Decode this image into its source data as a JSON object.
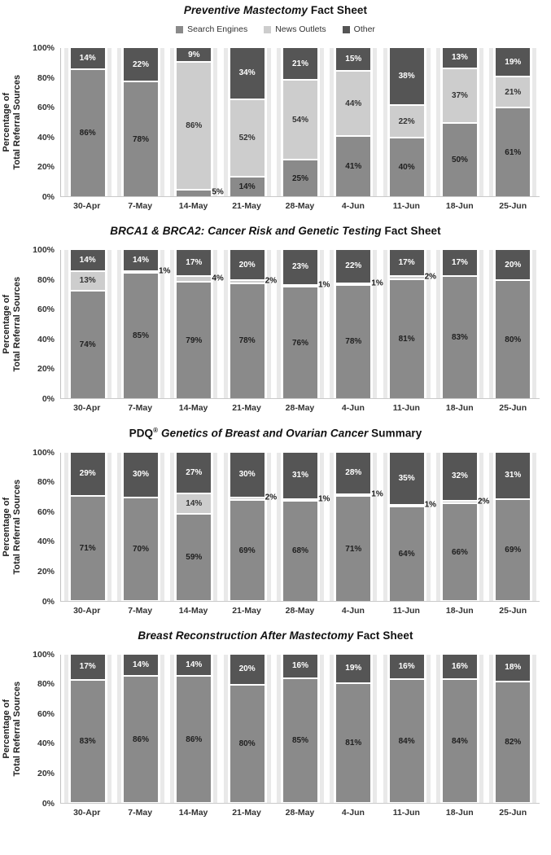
{
  "page": {
    "background": "#ffffff"
  },
  "colors": {
    "search": "#8a8a8a",
    "news": "#cdcdcd",
    "other": "#555555",
    "halo": "#e9e9e9",
    "axis_line": "#c0c0c0",
    "label_on_dark": "#ffffff",
    "label_on_medium": "#1f1f1f",
    "label_on_light": "#333333",
    "outside_label": "#1a1a1a"
  },
  "legend": {
    "items": [
      {
        "label": "Search Engines",
        "color_key": "search"
      },
      {
        "label": "News Outlets",
        "color_key": "news"
      },
      {
        "label": "Other",
        "color_key": "other"
      }
    ]
  },
  "y_axis": {
    "label_lines": [
      "Percentage of",
      "Total Referral Sources"
    ],
    "ticks": [
      "100%",
      "80%",
      "60%",
      "40%",
      "20%",
      "0%"
    ],
    "range": [
      0,
      100
    ]
  },
  "chart_data": [
    {
      "type": "bar",
      "subtype": "stacked-100",
      "title_parts": [
        {
          "text": "Preventive Mastectomy",
          "italic": true
        },
        {
          "text": " Fact Sheet",
          "italic": false
        }
      ],
      "show_legend": true,
      "categories": [
        "30-Apr",
        "7-May",
        "14-May",
        "21-May",
        "28-May",
        "4-Jun",
        "11-Jun",
        "18-Jun",
        "25-Jun"
      ],
      "series": [
        {
          "name": "Search Engines",
          "color_key": "search",
          "values": [
            86,
            78,
            5,
            14,
            25,
            41,
            40,
            50,
            61
          ]
        },
        {
          "name": "News Outlets",
          "color_key": "news",
          "values": [
            0,
            0,
            86,
            52,
            54,
            44,
            22,
            37,
            21
          ]
        },
        {
          "name": "Other",
          "color_key": "other",
          "values": [
            14,
            22,
            9,
            34,
            21,
            15,
            38,
            13,
            19
          ]
        }
      ],
      "ylabel": "Percentage of Total Referral Sources",
      "ylim": [
        0,
        100
      ],
      "grid": false,
      "legend_position": "top"
    },
    {
      "type": "bar",
      "subtype": "stacked-100",
      "title_parts": [
        {
          "text": "BRCA1 & BRCA2: Cancer Risk and Genetic Testing",
          "italic": true
        },
        {
          "text": " Fact Sheet",
          "italic": false
        }
      ],
      "show_legend": false,
      "categories": [
        "30-Apr",
        "7-May",
        "14-May",
        "21-May",
        "28-May",
        "4-Jun",
        "11-Jun",
        "18-Jun",
        "25-Jun"
      ],
      "series": [
        {
          "name": "Search Engines",
          "color_key": "search",
          "values": [
            74,
            85,
            79,
            78,
            76,
            78,
            81,
            83,
            80
          ]
        },
        {
          "name": "News Outlets",
          "color_key": "news",
          "values": [
            13,
            1,
            4,
            2,
            1,
            1,
            2,
            0,
            0
          ]
        },
        {
          "name": "Other",
          "color_key": "other",
          "values": [
            14,
            14,
            17,
            20,
            23,
            22,
            17,
            17,
            20
          ]
        }
      ],
      "ylabel": "Percentage of Total Referral Sources",
      "ylim": [
        0,
        100
      ],
      "grid": false
    },
    {
      "type": "bar",
      "subtype": "stacked-100",
      "title_parts": [
        {
          "text": "PDQ",
          "italic": false
        },
        {
          "text": "®",
          "italic": false,
          "sup": true
        },
        {
          "text": " Genetics of Breast and Ovarian Cancer",
          "italic": true
        },
        {
          "text": " Summary",
          "italic": false
        }
      ],
      "show_legend": false,
      "categories": [
        "30-Apr",
        "7-May",
        "14-May",
        "21-May",
        "28-May",
        "4-Jun",
        "11-Jun",
        "18-Jun",
        "25-Jun"
      ],
      "series": [
        {
          "name": "Search Engines",
          "color_key": "search",
          "values": [
            71,
            70,
            59,
            69,
            68,
            71,
            64,
            66,
            69
          ]
        },
        {
          "name": "News Outlets",
          "color_key": "news",
          "values": [
            0,
            0,
            14,
            2,
            1,
            1,
            1,
            2,
            0
          ]
        },
        {
          "name": "Other",
          "color_key": "other",
          "values": [
            29,
            30,
            27,
            30,
            31,
            28,
            35,
            32,
            31
          ]
        }
      ],
      "ylabel": "Percentage of Total Referral Sources",
      "ylim": [
        0,
        100
      ],
      "grid": false
    },
    {
      "type": "bar",
      "subtype": "stacked-100",
      "title_parts": [
        {
          "text": "Breast Reconstruction After Mastectomy",
          "italic": true
        },
        {
          "text": " Fact Sheet",
          "italic": false
        }
      ],
      "show_legend": false,
      "categories": [
        "30-Apr",
        "7-May",
        "14-May",
        "21-May",
        "28-May",
        "4-Jun",
        "11-Jun",
        "18-Jun",
        "25-Jun"
      ],
      "series": [
        {
          "name": "Search Engines",
          "color_key": "search",
          "values": [
            83,
            86,
            86,
            80,
            85,
            81,
            84,
            84,
            82
          ]
        },
        {
          "name": "News Outlets",
          "color_key": "news",
          "values": [
            0,
            0,
            0,
            0,
            0,
            0,
            0,
            0,
            0
          ]
        },
        {
          "name": "Other",
          "color_key": "other",
          "values": [
            17,
            14,
            14,
            20,
            16,
            19,
            16,
            16,
            18
          ]
        }
      ],
      "ylabel": "Percentage of Total Referral Sources",
      "ylim": [
        0,
        100
      ],
      "grid": false
    }
  ]
}
